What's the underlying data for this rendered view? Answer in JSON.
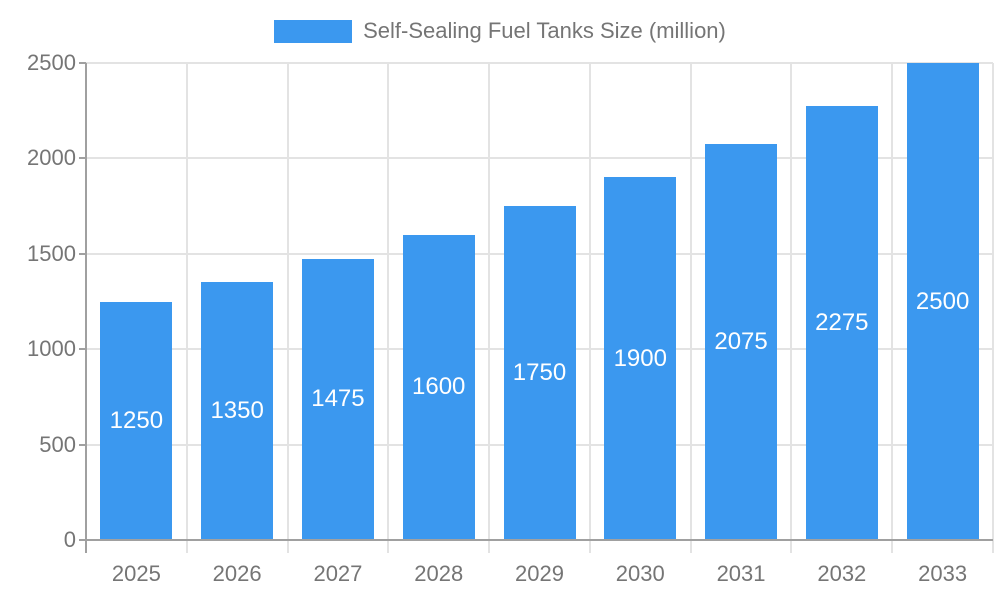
{
  "chart_data": {
    "type": "bar",
    "title": "",
    "legend": "Self-Sealing Fuel Tanks Size (million)",
    "legend_position": "top-center",
    "series": [
      {
        "name": "Self-Sealing Fuel Tanks Size (million)",
        "values": [
          1250,
          1350,
          1475,
          1600,
          1750,
          1900,
          2075,
          2275,
          2500
        ]
      }
    ],
    "categories": [
      "2025",
      "2026",
      "2027",
      "2028",
      "2029",
      "2030",
      "2031",
      "2032",
      "2033"
    ],
    "xlabel": "",
    "ylabel": "",
    "ylim": [
      0,
      2500
    ],
    "yticks": [
      0,
      500,
      1000,
      1500,
      2000,
      2500
    ],
    "grid": true,
    "data_labels_inside_bars": true,
    "colors": {
      "bar": "#3b98ef",
      "bar_label_text": "#ffffff",
      "axis_text": "#757575",
      "gridline": "#e3e3e3",
      "axis_line": "#a0a0a0",
      "background": "#ffffff"
    }
  }
}
